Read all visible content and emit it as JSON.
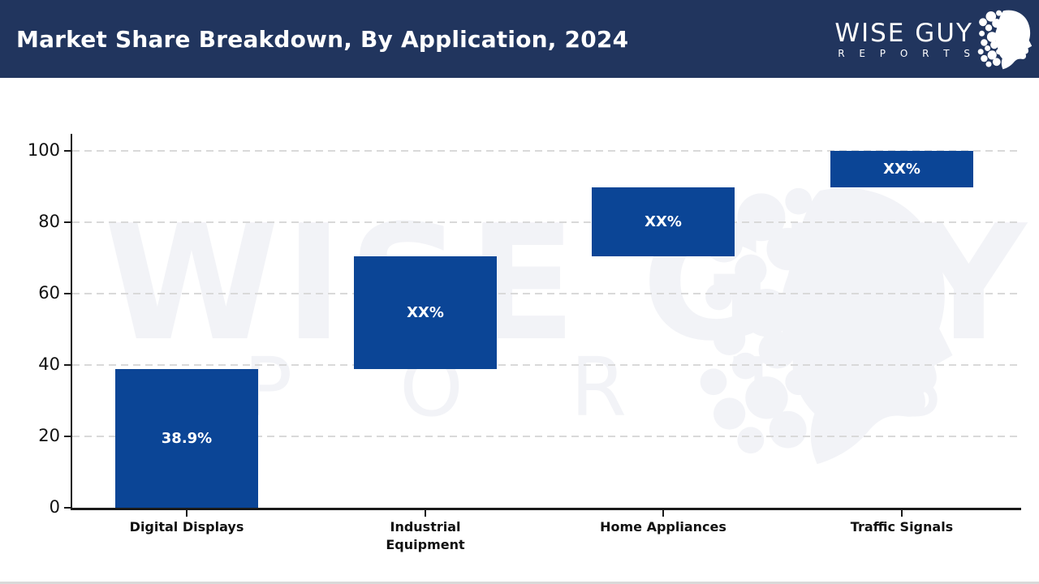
{
  "header": {
    "title": "Market Share Breakdown, By Application, 2024",
    "logo_line1": "WISE GUY",
    "logo_line2": "R E P O R T S"
  },
  "watermark": {
    "line1": "WISE GUY",
    "line2": "P O R T S"
  },
  "icons": {
    "logo_head": "wiseguy-head-icon",
    "watermark_head": "wiseguy-head-watermark-icon"
  },
  "colors": {
    "header_bg": "#21355e",
    "bar": "#0b4596",
    "grid": "#d9d9d9",
    "axis": "#1a1a1a",
    "watermark": "#f2f3f7",
    "bar_label": "#ffffff",
    "title_text": "#ffffff"
  },
  "chart_data": {
    "type": "bar",
    "subtype": "waterfall",
    "title": "Market Share Breakdown, By Application, 2024",
    "categories": [
      "Digital Displays",
      "Industrial\nEquipment",
      "Home Appliances",
      "Traffic Signals"
    ],
    "bars": [
      {
        "category": "Digital Displays",
        "start": 0,
        "end": 38.9,
        "label": "38.9%"
      },
      {
        "category": "Industrial Equipment",
        "start": 38.9,
        "end": 70.5,
        "label": "XX%"
      },
      {
        "category": "Home Appliances",
        "start": 70.5,
        "end": 89.8,
        "label": "XX%"
      },
      {
        "category": "Traffic Signals",
        "start": 89.8,
        "end": 100,
        "label": "XX%"
      }
    ],
    "xlabel": "",
    "ylabel": "",
    "ylim": [
      0,
      100
    ],
    "yticks": [
      0,
      20,
      40,
      60,
      80,
      100
    ],
    "grid": true,
    "grid_style": "dashed",
    "legend": false
  }
}
